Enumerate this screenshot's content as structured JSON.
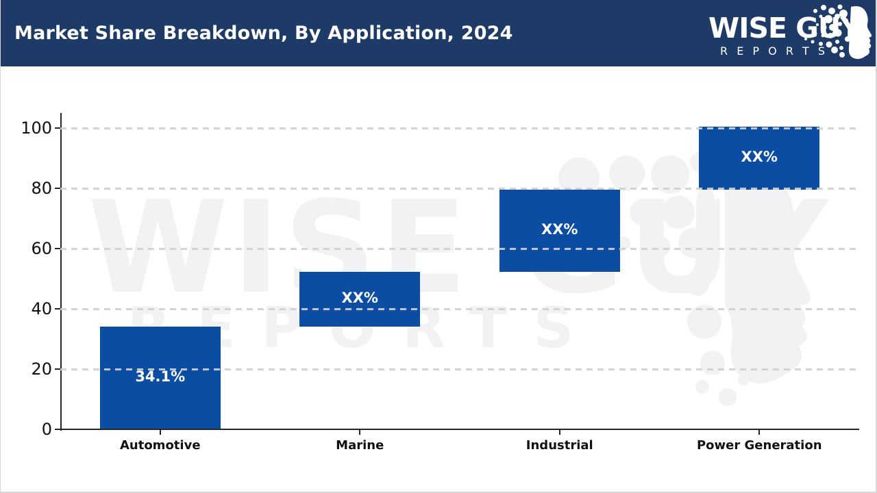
{
  "header": {
    "title": "Market Share Breakdown, By Application, 2024",
    "logo": {
      "line1": "WISE GUY",
      "line2": "R E P O R T S"
    }
  },
  "watermark": {
    "line1": "WISE GUY",
    "line2": "REPORTS"
  },
  "chart_data": {
    "type": "bar",
    "subtype": "waterfall",
    "title": "Market Share Breakdown, By Application, 2024",
    "categories": [
      "Automotive",
      "Marine",
      "Industrial",
      "Power Generation"
    ],
    "segments": [
      {
        "category": "Automotive",
        "start": 0,
        "end": 34.1,
        "label": "34.1%"
      },
      {
        "category": "Marine",
        "start": 34.1,
        "end": 52.3,
        "label": "XX%"
      },
      {
        "category": "Industrial",
        "start": 52.3,
        "end": 79.5,
        "label": "XX%"
      },
      {
        "category": "Power Generation",
        "start": 79.5,
        "end": 100.5,
        "label": "XX%"
      }
    ],
    "yticks": [
      0,
      20,
      40,
      60,
      80,
      100
    ],
    "ylim": [
      0,
      105
    ],
    "xlabel": "",
    "ylabel": "",
    "grid": "horizontal-dashed-over-bars",
    "legend": "none",
    "colors": {
      "bar": "#0a4da2",
      "header_bg": "#1e3a66",
      "grid": "#d0d0d0",
      "axis": "#262626",
      "bar_label": "#ffffff",
      "watermark": "#f2f2f4"
    }
  }
}
